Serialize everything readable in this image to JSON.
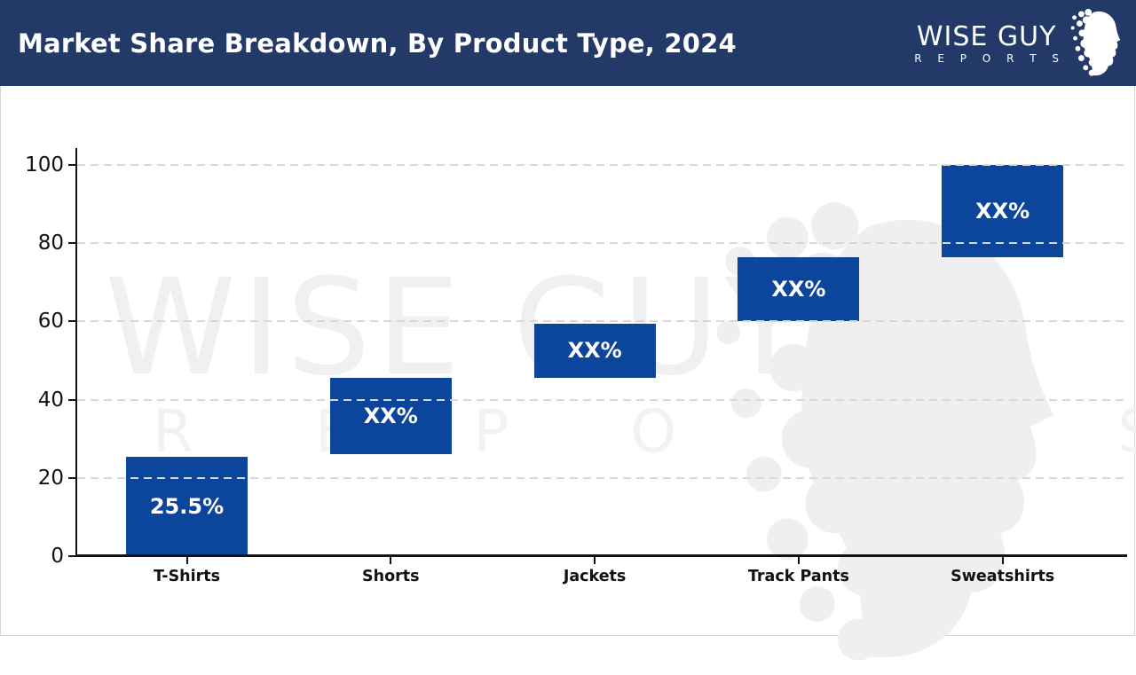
{
  "header": {
    "title": "Market Share Breakdown, By Product Type, 2024",
    "logo": {
      "line1": "WISE GUY",
      "line2": "R E P O R T S"
    }
  },
  "watermark": {
    "line1": "WISE GUY",
    "line2": "R E P O R T S"
  },
  "colors": {
    "header_bg": "#233a68",
    "bar": "#0c459c",
    "grid": "#d8d8d8",
    "axis": "#111111",
    "watermark": "#f0f0f0",
    "bar_label_text": "#ffffff",
    "title_text": "#ffffff"
  },
  "chart_data": {
    "type": "bar",
    "subtype": "waterfall",
    "title": "Market Share Breakdown, By Product Type, 2024",
    "categories": [
      "T-Shirts",
      "Shorts",
      "Jackets",
      "Track Pants",
      "Sweatshirts"
    ],
    "segments": [
      {
        "start": 0,
        "end": 25.5
      },
      {
        "start": 26,
        "end": 45.5
      },
      {
        "start": 45.5,
        "end": 59.5
      },
      {
        "start": 60,
        "end": 76.5
      },
      {
        "start": 76.5,
        "end": 100
      }
    ],
    "bar_labels": [
      "25.5%",
      "XX%",
      "XX%",
      "XX%",
      "XX%"
    ],
    "yticks": [
      0,
      20,
      40,
      60,
      80,
      100
    ],
    "ylim": [
      0,
      105
    ],
    "xlabel": "",
    "ylabel": "",
    "grid": "horizontal-dashed",
    "legend": "none"
  }
}
